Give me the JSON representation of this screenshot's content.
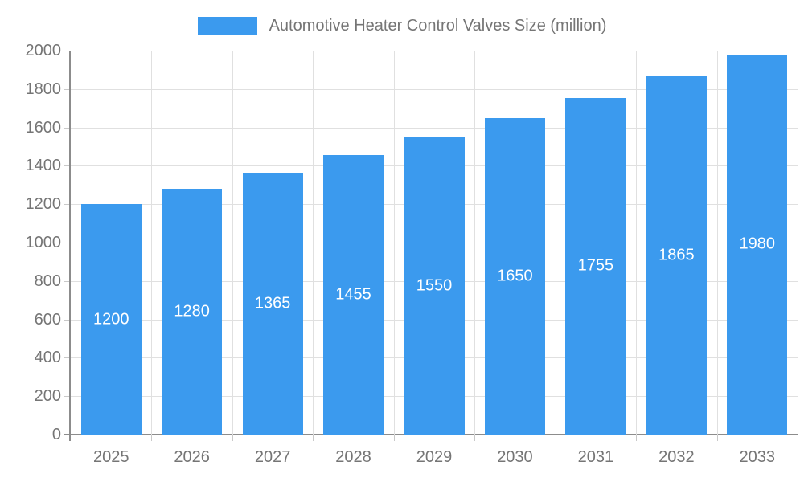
{
  "legend": {
    "label": "Automotive Heater Control Valves Size (million)"
  },
  "chart_data": {
    "type": "bar",
    "title": "Automotive Heater Control Valves Size (million)",
    "categories": [
      "2025",
      "2026",
      "2027",
      "2028",
      "2029",
      "2030",
      "2031",
      "2032",
      "2033"
    ],
    "values": [
      1200,
      1280,
      1365,
      1455,
      1550,
      1650,
      1755,
      1865,
      1980
    ],
    "xlabel": "",
    "ylabel": "",
    "ylim": [
      0,
      2000
    ],
    "ytick_interval": 200,
    "ytick_labels": [
      "0",
      "200",
      "400",
      "600",
      "800",
      "1000",
      "1200",
      "1400",
      "1600",
      "1800",
      "2000"
    ],
    "grid": true,
    "legend_position": "top",
    "bar_color": "#3B9AEE",
    "bar_label_color": "#FFFFFF",
    "axis_color": "#8C8C8C",
    "grid_color": "#E0E0E0",
    "tick_color": "#C9C9C9",
    "text_color": "#757575"
  }
}
